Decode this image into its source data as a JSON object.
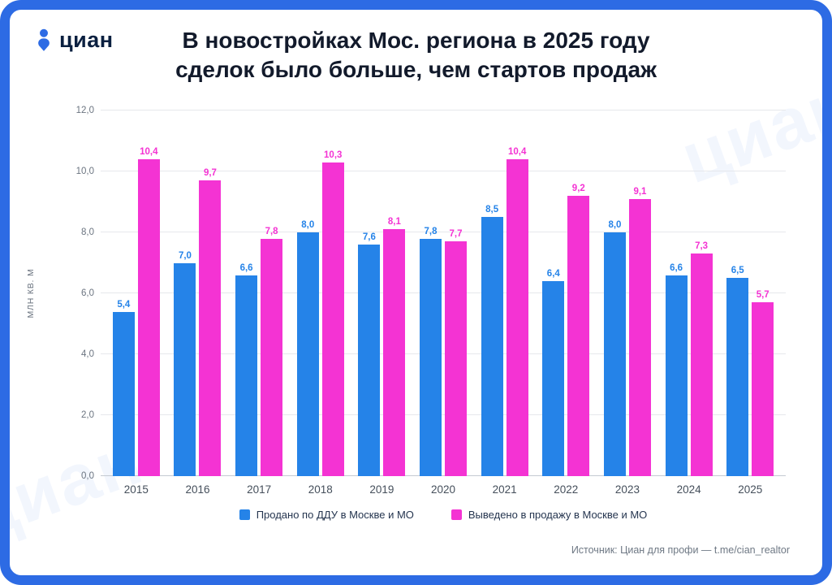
{
  "logo": {
    "text": "циан"
  },
  "title": {
    "line1": "В новостройках Мос. региона в 2025 году",
    "line2": "сделок было больше, чем стартов продаж"
  },
  "watermark_text": "циан",
  "source": "Источник: Циан для профи — t.me/cian_realtor",
  "colors": {
    "frame_blue": "#2d6be4",
    "series_blue": "#2583e8",
    "series_magenta": "#f433d3"
  },
  "chart_data": {
    "type": "bar",
    "title": "В новостройках Мос. региона в 2025 году сделок было больше, чем стартов продаж",
    "categories": [
      "2015",
      "2016",
      "2017",
      "2018",
      "2019",
      "2020",
      "2021",
      "2022",
      "2023",
      "2024",
      "2025"
    ],
    "series": [
      {
        "name": "Продано по ДДУ в Москве и МО",
        "color": "#2583e8",
        "values": [
          5.4,
          7.0,
          6.6,
          8.0,
          7.6,
          7.8,
          8.5,
          6.4,
          8.0,
          6.6,
          6.5
        ]
      },
      {
        "name": "Выведено в продажу в Москве и МО",
        "color": "#f433d3",
        "values": [
          10.4,
          9.7,
          7.8,
          10.3,
          8.1,
          7.7,
          10.4,
          9.2,
          9.1,
          7.3,
          5.7
        ]
      }
    ],
    "xlabel": "",
    "ylabel": "МЛН КВ. М",
    "ylim": [
      0,
      12
    ],
    "ytick_step": 2,
    "yticks": [
      "0,0",
      "2,0",
      "4,0",
      "6,0",
      "8,0",
      "10,0",
      "12,0"
    ],
    "grid": true,
    "legend_position": "bottom",
    "value_label_decimal_separator": ","
  }
}
